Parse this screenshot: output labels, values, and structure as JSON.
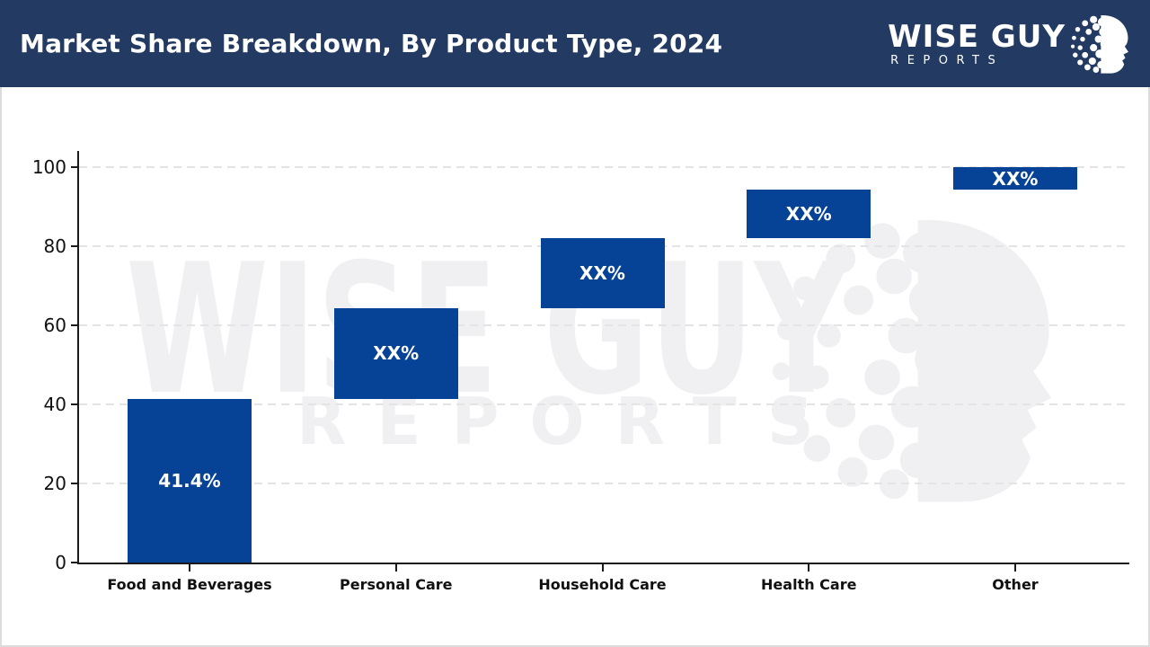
{
  "header": {
    "title": "Market Share Breakdown, By Product Type, 2024",
    "logo": {
      "wordmark": "WISE GUY",
      "subtext": "REPORTS"
    }
  },
  "watermark": {
    "wordmark": "WISE GUY",
    "subtext": "REPORTS"
  },
  "chart_data": {
    "type": "bar",
    "subtype": "waterfall",
    "title": "Market Share Breakdown, By Product Type, 2024",
    "xlabel": "",
    "ylabel": "",
    "categories": [
      "Food and Beverages",
      "Personal Care",
      "Household Care",
      "Health Care",
      "Other"
    ],
    "bars": [
      {
        "category": "Food and Beverages",
        "start": 0,
        "end": 41.4,
        "value": 41.4,
        "label": "41.4%"
      },
      {
        "category": "Personal Care",
        "start": 41.4,
        "end": 64.3,
        "value": 22.9,
        "label": "XX%"
      },
      {
        "category": "Household Care",
        "start": 64.3,
        "end": 82.1,
        "value": 17.8,
        "label": "XX%"
      },
      {
        "category": "Health Care",
        "start": 82.1,
        "end": 94.3,
        "value": 12.2,
        "label": "XX%"
      },
      {
        "category": "Other",
        "start": 94.3,
        "end": 100,
        "value": 5.7,
        "label": "XX%"
      }
    ],
    "yticks": [
      0,
      20,
      40,
      60,
      80,
      100
    ],
    "ylim": [
      0,
      104
    ],
    "grid": {
      "horizontal": true,
      "style": "dashed"
    },
    "legend": "none"
  },
  "colors": {
    "header_background": "#233a63",
    "bar_fill": "#064396",
    "bar_label": "#ffffff",
    "axis": "#1a1a1a",
    "tick_label": "#111111",
    "gridline": "#e4e4e4",
    "watermark": "#f0f0f2",
    "border": "#dcdcdc"
  }
}
